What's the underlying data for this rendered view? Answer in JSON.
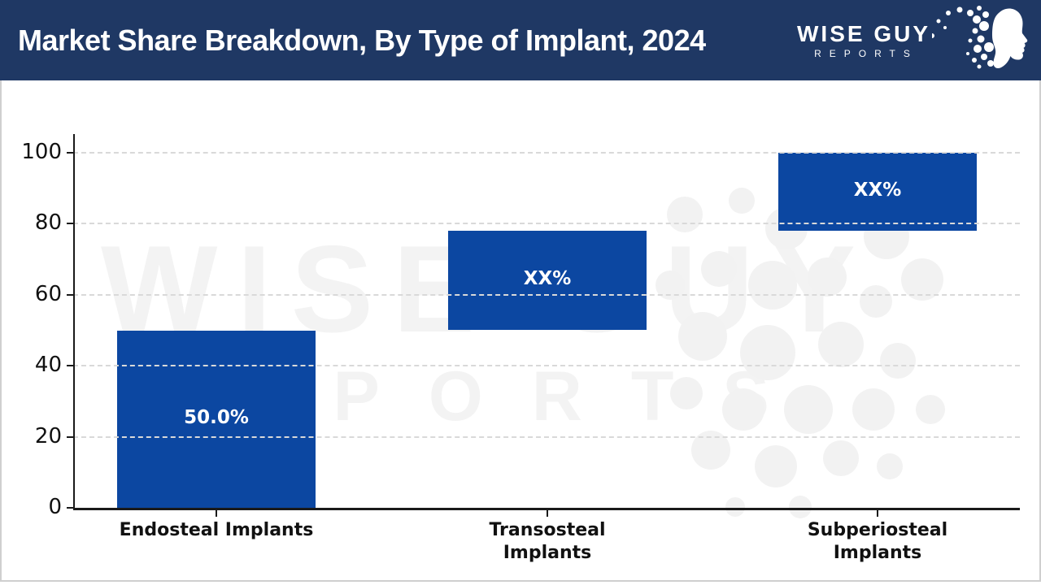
{
  "header": {
    "title": "Market Share Breakdown, By Type of Implant, 2024",
    "background_color": "#1f3864",
    "logo": {
      "line1": "WISE GUY",
      "line2": "REPORTS"
    }
  },
  "watermark": {
    "line1": "WISE GUY",
    "line2": "REPORTS"
  },
  "chart_data": {
    "type": "bar",
    "subtype": "waterfall",
    "title": "Market Share Breakdown, By Type of Implant, 2024",
    "categories": [
      "Endosteal Implants",
      "Transosteal Implants",
      "Subperiosteal Implants"
    ],
    "category_display_lines": [
      [
        "Endosteal Implants"
      ],
      [
        "Transosteal",
        "Implants"
      ],
      [
        "Subperiosteal",
        "Implants"
      ]
    ],
    "segments": [
      {
        "category": "Endosteal Implants",
        "start": 0,
        "end": 50,
        "value": 50.0,
        "label": "50.0%"
      },
      {
        "category": "Transosteal Implants",
        "start": 50,
        "end": 78,
        "value": 28.0,
        "label": "XX%"
      },
      {
        "category": "Subperiosteal Implants",
        "start": 78,
        "end": 100,
        "value": 22.0,
        "label": "XX%"
      }
    ],
    "xlabel": "",
    "ylabel": "",
    "ylim": [
      0,
      105
    ],
    "yticks": [
      0,
      20,
      40,
      60,
      80,
      100
    ],
    "grid": "horizontal-dashed",
    "legend": "none",
    "bar_color": "#0c47a1",
    "bar_label_color": "#ffffff",
    "grid_color": "#d9d9d9",
    "axis_color": "#1a1a1a"
  }
}
